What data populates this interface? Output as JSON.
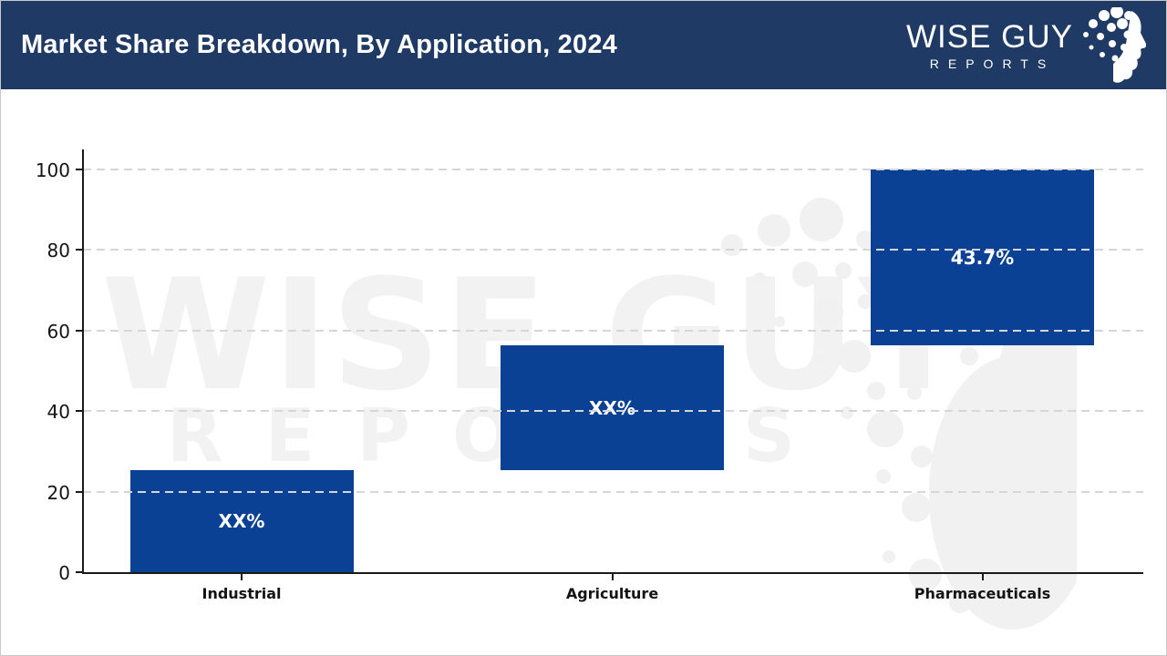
{
  "header": {
    "title": "Market Share Breakdown, By Application, 2024",
    "logo": {
      "line1": "WISE GUY",
      "line2": "REPORTS"
    }
  },
  "watermark": {
    "line1": "WISE GUY",
    "line2": "REPORTS"
  },
  "colors": {
    "header_bg": "#203a66",
    "bar": "#0a4195",
    "bar_label": "#ffffff",
    "grid": "#d6d6d6",
    "axis": "#1a1a1a",
    "watermark": "#f2f2f3",
    "page_border": "#c9c9c9"
  },
  "chart_data": {
    "type": "bar",
    "subtype": "waterfall",
    "title": "Market Share Breakdown, By Application, 2024",
    "categories": [
      "Industrial",
      "Agriculture",
      "Pharmaceuticals"
    ],
    "segments": [
      {
        "category": "Industrial",
        "start": 0,
        "end": 25.3,
        "label": "XX%",
        "estimated_value": 25.3
      },
      {
        "category": "Agriculture",
        "start": 25.3,
        "end": 56.3,
        "label": "XX%",
        "estimated_value": 31.0
      },
      {
        "category": "Pharmaceuticals",
        "start": 56.3,
        "end": 100,
        "label": "43.7%",
        "estimated_value": 43.7
      }
    ],
    "yticks": [
      0,
      20,
      40,
      60,
      80,
      100
    ],
    "ylim": [
      0,
      105
    ],
    "xlabel": "",
    "ylabel": "",
    "grid": {
      "axis": "y",
      "style": "dashed",
      "drawn_above_bars": true
    },
    "legend": "none"
  }
}
